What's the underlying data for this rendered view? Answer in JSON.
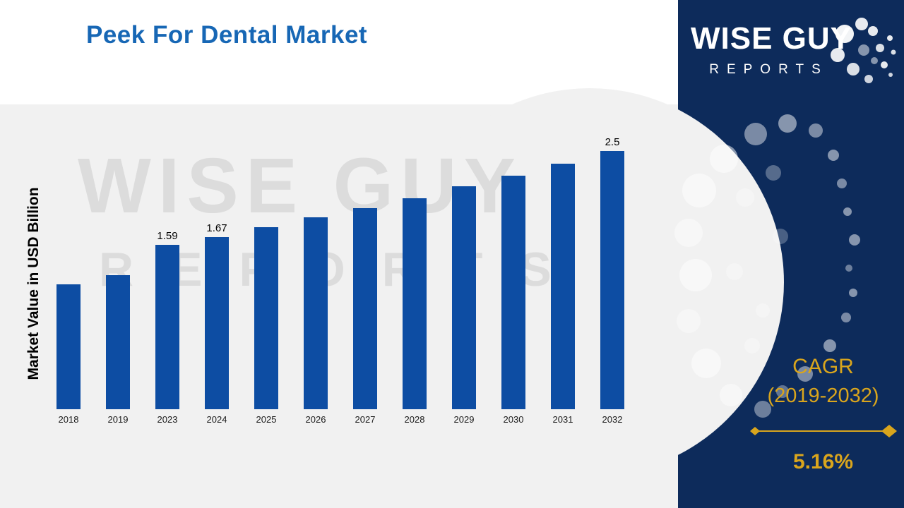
{
  "header": {
    "title": "Peek For Dental Market"
  },
  "logo": {
    "name": "WISE GUY",
    "sub": "REPORTS"
  },
  "watermark": {
    "line1": "WISE GUY",
    "line2": "REPORTS"
  },
  "chart_data": {
    "type": "bar",
    "title": "Peek For Dental Market",
    "xlabel": "",
    "ylabel": "Market Value in USD Billion",
    "categories": [
      "2018",
      "2019",
      "2023",
      "2024",
      "2025",
      "2026",
      "2027",
      "2028",
      "2029",
      "2030",
      "2031",
      "2032"
    ],
    "values": [
      1.21,
      1.3,
      1.59,
      1.67,
      1.76,
      1.86,
      1.95,
      2.04,
      2.16,
      2.26,
      2.38,
      2.5
    ],
    "bar_labels": [
      "",
      "",
      "1.59",
      "1.67",
      "",
      "",
      "",
      "",
      "",
      "",
      "",
      "2.5"
    ],
    "ylim": [
      0,
      2.6
    ],
    "grid": false,
    "legend": false,
    "bar_color": "#0d4da3"
  },
  "cagr": {
    "label": "CAGR",
    "range": "(2019-2032)",
    "value": "5.16%"
  },
  "colors": {
    "accent_blue": "#1767b5",
    "bar_blue": "#0d4da3",
    "navy_panel": "#0d2b5b",
    "gold": "#d9a51d",
    "chart_bg": "#f1f1f1"
  }
}
